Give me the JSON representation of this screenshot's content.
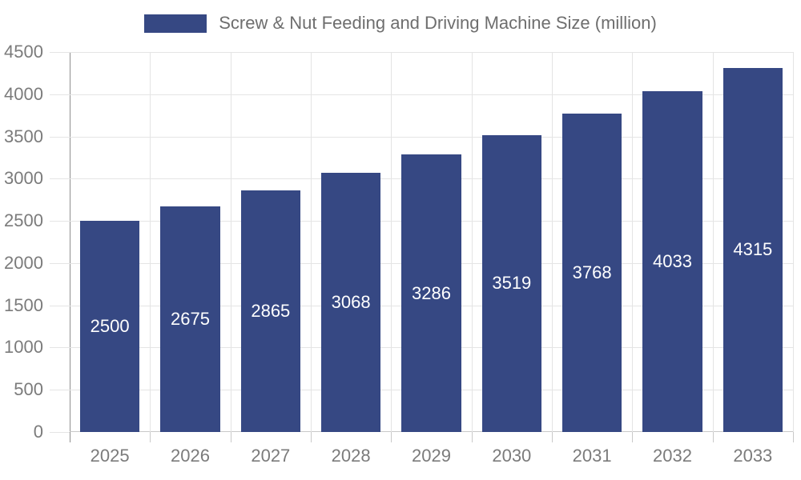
{
  "legend": {
    "label": "Screw & Nut Feeding and Driving Machine Size (million)"
  },
  "chart_data": {
    "type": "bar",
    "title": "Screw & Nut Feeding and Driving Machine Size (million)",
    "series_name": "Screw & Nut Feeding and Driving Machine Size (million)",
    "categories": [
      "2025",
      "2026",
      "2027",
      "2028",
      "2029",
      "2030",
      "2031",
      "2032",
      "2033"
    ],
    "values": [
      2500,
      2675,
      2865,
      3068,
      3286,
      3519,
      3768,
      4033,
      4315
    ],
    "xlabel": "",
    "ylabel": "",
    "ylim": [
      0,
      4500
    ],
    "ytick_step": 500,
    "ytick_labels": [
      "0",
      "500",
      "1000",
      "1500",
      "2000",
      "2500",
      "3000",
      "3500",
      "4000",
      "4500"
    ],
    "grid": true,
    "legend_position": "top",
    "bar_width_fraction": 0.74,
    "colors": {
      "bar": "#364883",
      "grid": "#e4e4e4",
      "axis_line": "#8f8f8f",
      "baseline": "#c9c9c9",
      "axis_text": "#7b7b7b",
      "legend_text": "#6e6e6e",
      "value_label": "#ffffff"
    }
  }
}
